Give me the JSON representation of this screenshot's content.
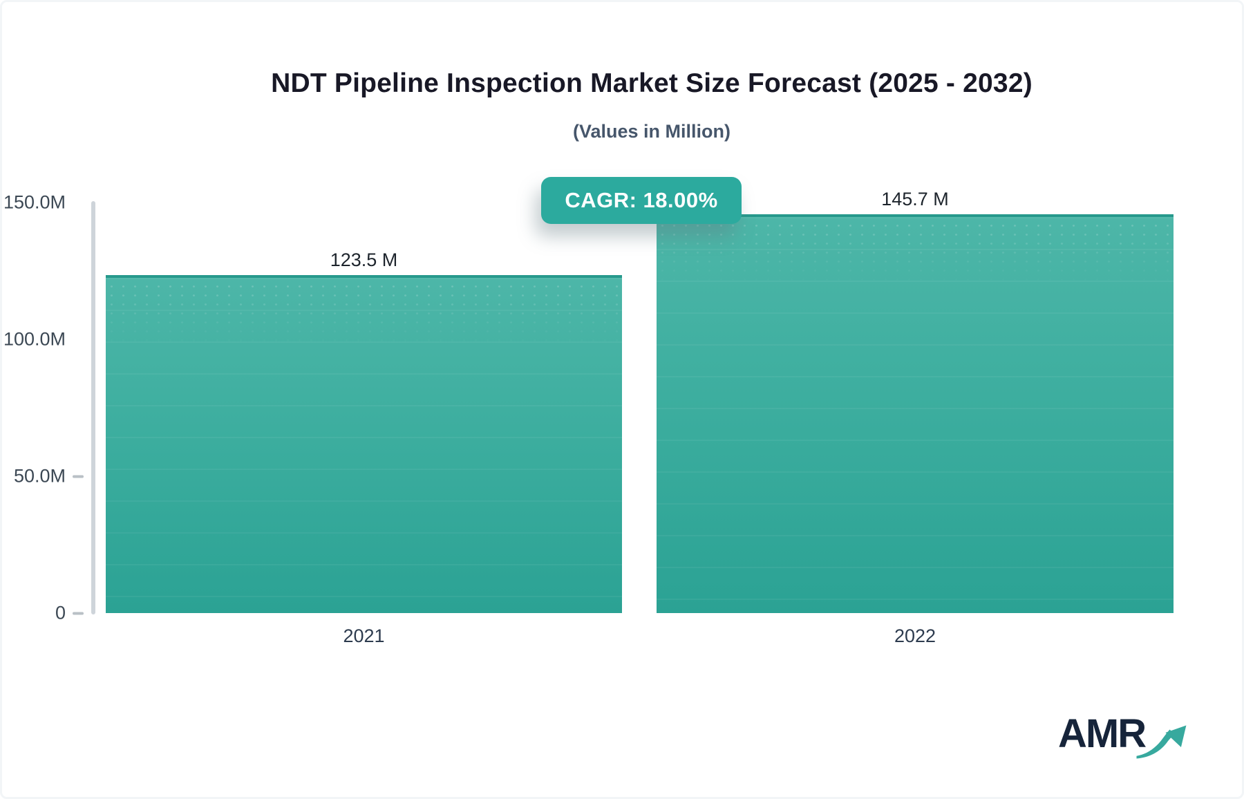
{
  "title": "NDT Pipeline Inspection Market Size Forecast (2025 - 2032)",
  "subtitle": "(Values in Million)",
  "badge": {
    "label": "CAGR: 18.00%"
  },
  "logo": {
    "text": "AMR"
  },
  "colors": {
    "bar_gradient_top": "#4db6a8",
    "bar_gradient_bottom": "#2ba294",
    "bar_top_cap": "#27998c",
    "badge_background": "#2caa9e",
    "badge_text": "#ffffff",
    "axis_line": "#ced4da",
    "baseline": "#ccd3d7",
    "title_text": "#181826",
    "subtitle_text": "#46566b",
    "tick_text": "#3c4854",
    "category_text": "#2d3b4e",
    "logo_navy": "#16243a",
    "logo_teal": "#37a99e"
  },
  "chart_data": {
    "type": "bar",
    "title": "NDT Pipeline Inspection Market Size Forecast (2025 - 2032)",
    "subtitle": "(Values in Million)",
    "unit": "Million",
    "cagr": "18.00%",
    "categories": [
      "2021",
      "2022"
    ],
    "values": [
      123.5,
      145.7
    ],
    "value_labels": [
      "123.5 M",
      "145.7 M"
    ],
    "ylim": [
      0,
      150
    ],
    "yticks": [
      {
        "value": 0,
        "label": "0",
        "dash": true
      },
      {
        "value": 50,
        "label": "50.0M",
        "dash": true
      },
      {
        "value": 100,
        "label": "100.0M",
        "dash": false
      },
      {
        "value": 150,
        "label": "150.0M",
        "dash": false
      }
    ],
    "grid": false,
    "legend": false
  }
}
